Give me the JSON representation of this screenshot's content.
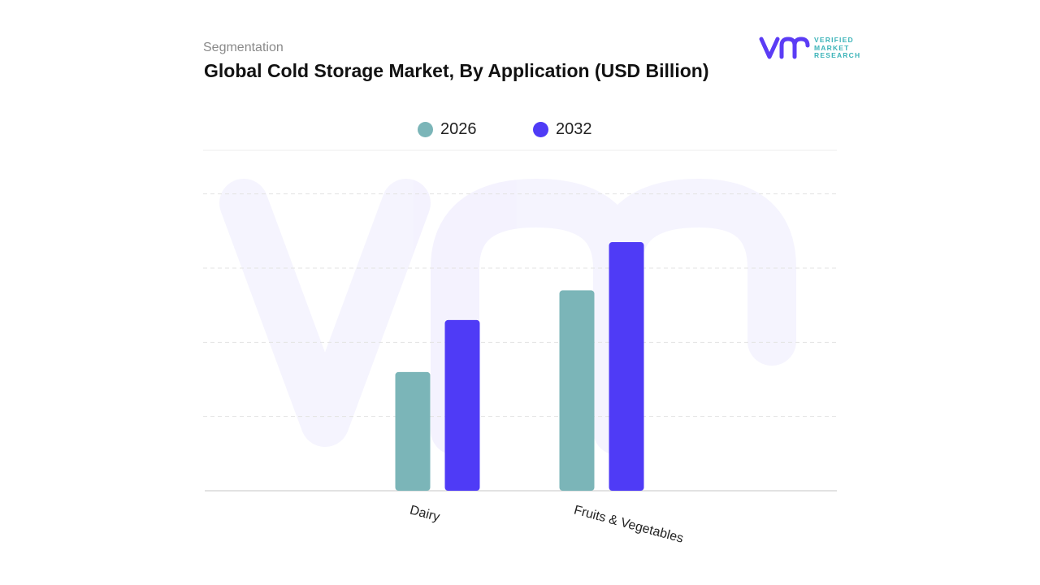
{
  "header": {
    "subtitle": "Segmentation",
    "title": "Global Cold Storage Market, By Application (USD Billion)"
  },
  "brand": {
    "logo_lines": [
      "VERIFIED",
      "MARKET",
      "RESEARCH"
    ],
    "color_primary": "#5b3cf5",
    "color_secondary": "#3bb3b8"
  },
  "chart_data": {
    "type": "bar",
    "categories": [
      "Dairy",
      "Fruits & Vegetables"
    ],
    "series": [
      {
        "name": "2026",
        "color": "#7bb5b8",
        "values": [
          16,
          27
        ]
      },
      {
        "name": "2032",
        "color": "#4f3bf6",
        "values": [
          23,
          33.5
        ]
      }
    ],
    "ylim": [
      0,
      45
    ],
    "grid": true,
    "legend": "top-center"
  }
}
